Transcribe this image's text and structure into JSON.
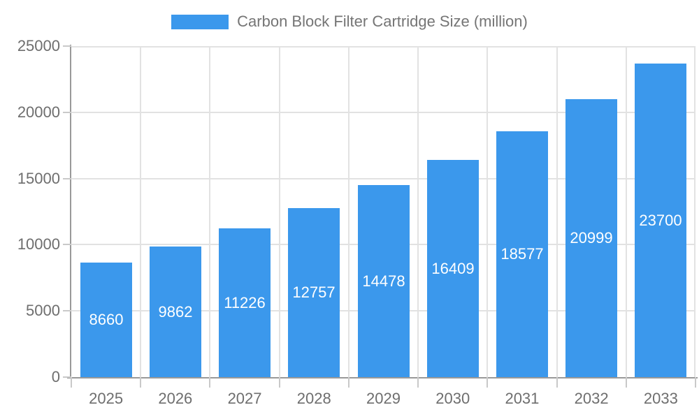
{
  "legend": {
    "label": "Carbon Block Filter Cartridge Size (million)"
  },
  "chart_data": {
    "type": "bar",
    "title": "Carbon Block Filter Cartridge Size (million)",
    "categories": [
      "2025",
      "2026",
      "2027",
      "2028",
      "2029",
      "2030",
      "2031",
      "2032",
      "2033"
    ],
    "values": [
      8660,
      9862,
      11226,
      12757,
      14478,
      16409,
      18577,
      20999,
      23700
    ],
    "xlabel": "",
    "ylabel": "",
    "ylim": [
      0,
      25000
    ],
    "y_ticks": [
      0,
      5000,
      10000,
      15000,
      20000,
      25000
    ],
    "grid": true,
    "legend_position": "top-center",
    "bar_label_position": "inside-middle",
    "colors": {
      "bar": "#3B98EC",
      "bar_label": "#FFFFFF",
      "axis_line": "#999999",
      "tick": "#C9C9C9",
      "grid_line": "#E2E2E2",
      "axis_text": "#6E6E6E",
      "legend_text": "#757575",
      "background": "#FFFFFF"
    }
  }
}
